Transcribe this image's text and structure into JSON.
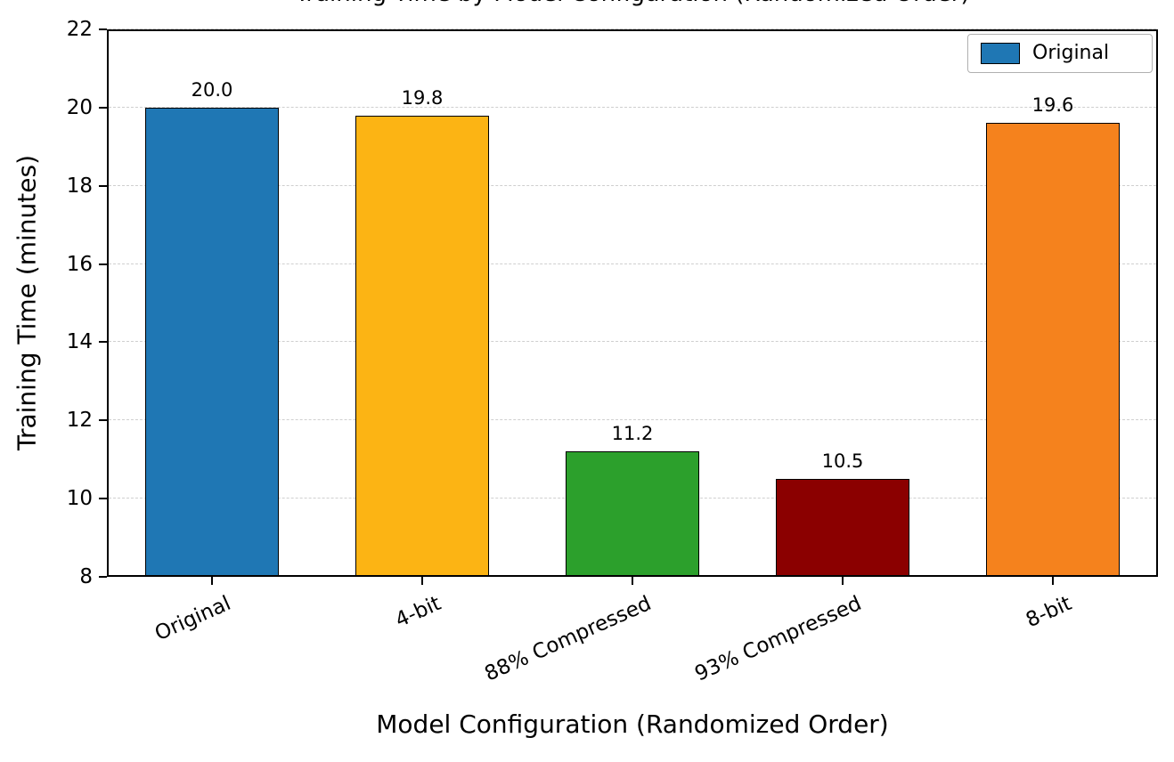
{
  "chart_data": {
    "type": "bar",
    "clipped_title": "Training Time by Model Configuration (Randomized Order)",
    "xlabel": "Model Configuration (Randomized Order)",
    "ylabel": "Training Time (minutes)",
    "categories": [
      "Original",
      "4-bit",
      "88% Compressed",
      "93% Compressed",
      "8-bit"
    ],
    "values": [
      20.0,
      19.8,
      11.2,
      10.5,
      19.6
    ],
    "value_labels": [
      "20.0",
      "19.8",
      "11.2",
      "10.5",
      "19.6"
    ],
    "bar_colors": [
      "#1f77b4",
      "#fcb414",
      "#2ca02c",
      "#8b0000",
      "#f5821d"
    ],
    "bar_edge_color": "#000000",
    "ylim": [
      8,
      22
    ],
    "yticks": [
      8,
      10,
      12,
      14,
      16,
      18,
      20,
      22
    ],
    "grid": "horizontal-dashed",
    "legend": {
      "position": "upper right",
      "items": [
        {
          "label": "Original",
          "color": "#1f77b4"
        }
      ]
    }
  }
}
